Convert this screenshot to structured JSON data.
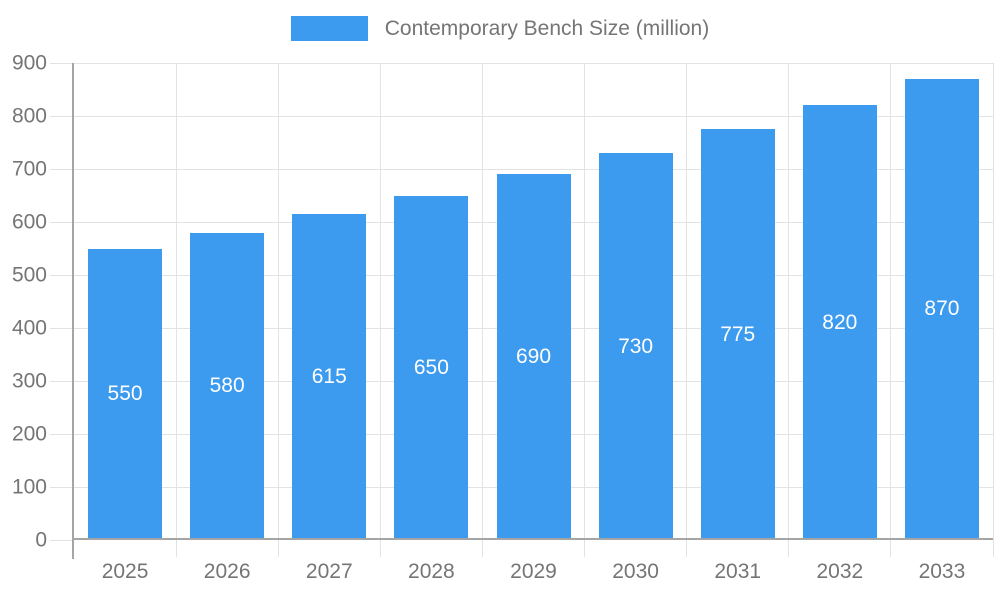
{
  "chart_data": {
    "type": "bar",
    "legend_label": "Contemporary Bench Size (million)",
    "legend_position": "top",
    "categories": [
      "2025",
      "2026",
      "2027",
      "2028",
      "2029",
      "2030",
      "2031",
      "2032",
      "2033"
    ],
    "series": [
      {
        "name": "Contemporary Bench Size (million)",
        "values": [
          550,
          580,
          615,
          650,
          690,
          730,
          775,
          820,
          870
        ]
      }
    ],
    "bar_value_labels": [
      "550",
      "580",
      "615",
      "650",
      "690",
      "730",
      "775",
      "820",
      "870"
    ],
    "ylim": [
      0,
      900
    ],
    "ytick_step": 100,
    "yticks": [
      0,
      100,
      200,
      300,
      400,
      500,
      600,
      700,
      800,
      900
    ],
    "grid": true,
    "colors": {
      "bar": "#3C9BEE",
      "bar_label": "#FFFFFF",
      "grid": "#E3E3E3",
      "axis_line": "#A5A5A5",
      "text": "#757575",
      "background": "#FFFFFF"
    }
  }
}
